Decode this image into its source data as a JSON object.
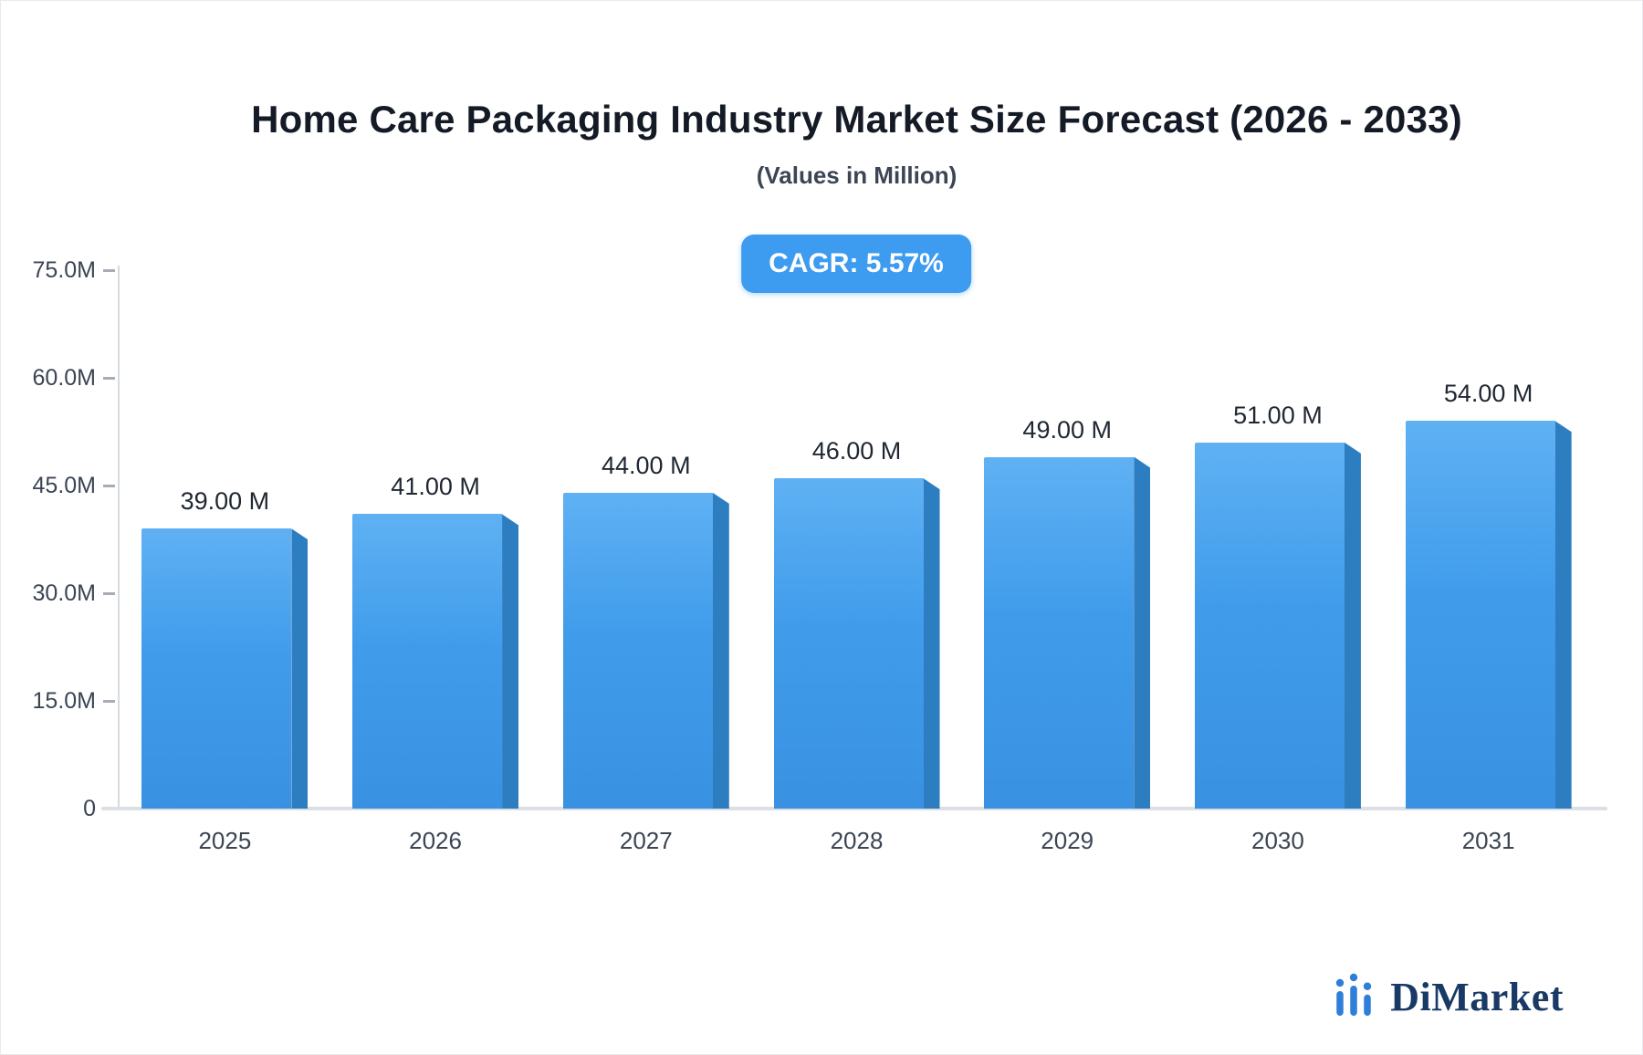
{
  "title": "Home Care Packaging Industry Market Size Forecast (2026 - 2033)",
  "subtitle": "(Values in Million)",
  "badge": {
    "label": "CAGR: 5.57%"
  },
  "brand": {
    "name": "DiMarket",
    "icon": "bar-chart-logo-icon"
  },
  "colors": {
    "bar": "#409ceb",
    "bar_light": "#5fb1f3",
    "bar_dark": "#2d7dc1",
    "badge_bg": "#3d9bf0",
    "badge_text": "#ffffff",
    "title_text": "#141b26",
    "muted_text": "#3b4554",
    "axis_line": "#d6dae0",
    "brand_navy": "#1a3a66",
    "brand_blue": "#2e7fd9"
  },
  "chart_data": {
    "type": "bar",
    "title": "Home Care Packaging Industry Market Size Forecast (2026 - 2033)",
    "subtitle": "(Values in Million)",
    "categories": [
      "2025",
      "2026",
      "2027",
      "2028",
      "2029",
      "2030",
      "2031"
    ],
    "values": [
      39,
      41,
      44,
      46,
      49,
      51,
      54
    ],
    "value_labels": [
      "39.00 M",
      "41.00 M",
      "44.00 M",
      "46.00 M",
      "49.00 M",
      "51.00 M",
      "54.00 M"
    ],
    "xlabel": "",
    "ylabel": "",
    "ylim": [
      0,
      75
    ],
    "yticks": [
      0,
      15,
      30,
      45,
      60,
      75
    ],
    "ytick_labels": [
      "0",
      "15.0M",
      "30.0M",
      "45.0M",
      "60.0M",
      "75.0M"
    ],
    "grid": false,
    "legend": "none",
    "annotation": "CAGR: 5.57%"
  }
}
